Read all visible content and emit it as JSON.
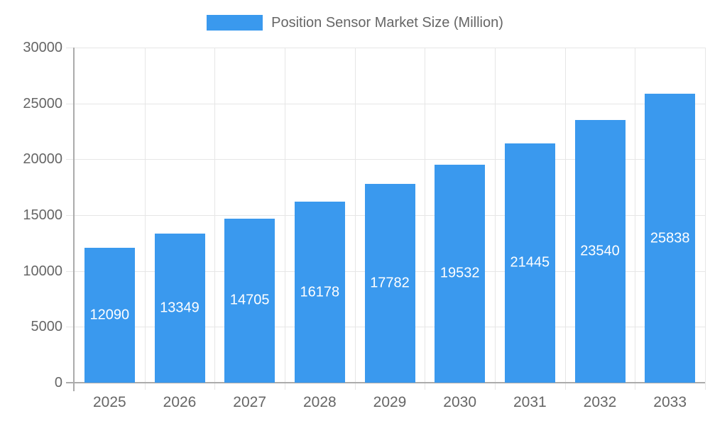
{
  "chart_data": {
    "type": "bar",
    "title": "Position Sensor Market Size (Million)",
    "legend": {
      "position": "top",
      "label": "Position Sensor Market Size (Million)"
    },
    "categories": [
      "2025",
      "2026",
      "2027",
      "2028",
      "2029",
      "2030",
      "2031",
      "2032",
      "2033"
    ],
    "values": [
      12090,
      13349,
      14705,
      16178,
      17782,
      19532,
      21445,
      23540,
      25838
    ],
    "xlabel": "",
    "ylabel": "",
    "ylim": [
      0,
      30000
    ],
    "yticks": [
      0,
      5000,
      10000,
      15000,
      20000,
      25000,
      30000
    ],
    "grid": true,
    "colors": {
      "bar": "#3A99EE",
      "value_label": "#FFFFFF",
      "axis_text": "#666666",
      "grid_line": "#E6E6E6",
      "axis_line": "#ABABAB",
      "background": "#FFFFFF"
    }
  }
}
